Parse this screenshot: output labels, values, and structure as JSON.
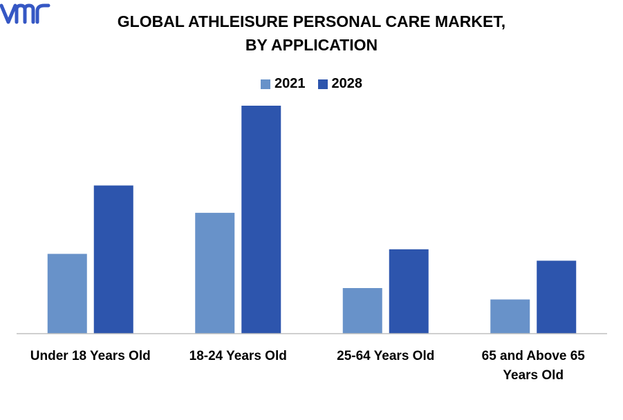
{
  "chart_data": {
    "type": "bar",
    "title_lines": [
      "GLOBAL ATHLEISURE PERSONAL CARE MARKET,",
      "BY APPLICATION"
    ],
    "categories": [
      [
        "Under 18 Years Old"
      ],
      [
        "18-24 Years Old"
      ],
      [
        "25-64 Years Old"
      ],
      [
        "65 and Above 65",
        "Years Old"
      ]
    ],
    "series": [
      {
        "name": "2021",
        "color": "#6892c9",
        "values": [
          3.5,
          5.3,
          2.0,
          1.5
        ]
      },
      {
        "name": "2028",
        "color": "#2d55ad",
        "values": [
          6.5,
          10.0,
          3.7,
          3.2
        ]
      }
    ],
    "ylim": [
      0,
      10
    ],
    "grid": false,
    "legend_position": "top-center"
  },
  "logo": {
    "text": "vmr",
    "color": "#3557c4"
  }
}
